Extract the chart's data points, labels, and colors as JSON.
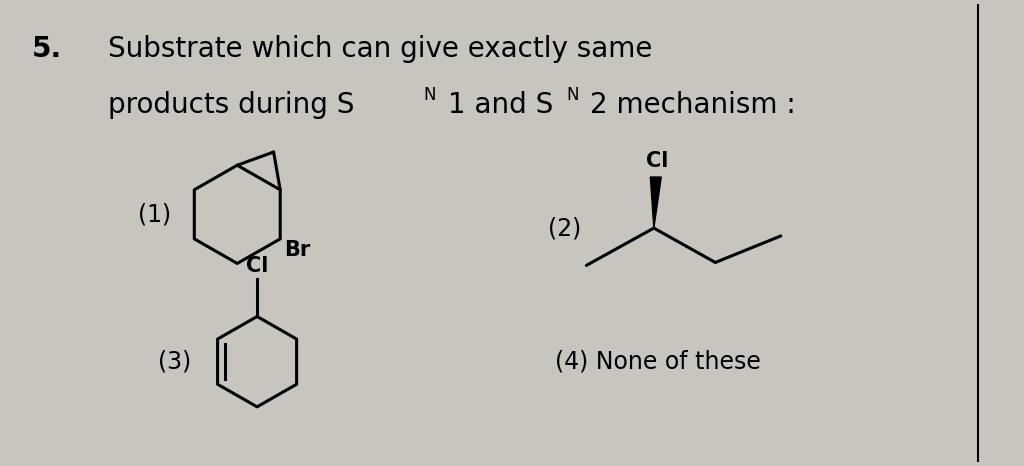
{
  "background_color": "#c8c4be",
  "text_color": "#000000",
  "question_number": "5.",
  "question_line1": "Substrate which can give exactly same",
  "question_line2a": "products during S",
  "question_sub1": "N",
  "question_line2b": "1 and S",
  "question_sub2": "N",
  "question_line2c": "2 mechanism :",
  "option1_label": "(1)",
  "option2_label": "(2)",
  "option3_label": "(3)",
  "option4_label": "(4) None of these",
  "font_size_question": 20,
  "font_size_label": 17,
  "font_size_atom": 15,
  "line_color": "#000000",
  "line_width": 2.2
}
